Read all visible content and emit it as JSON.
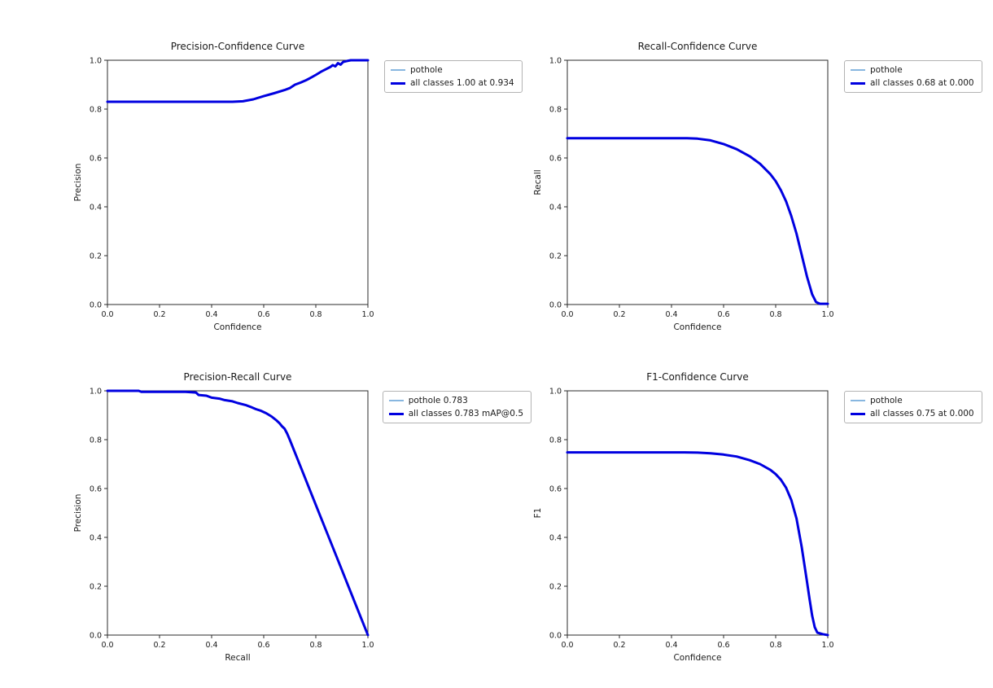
{
  "page": {
    "background_color": "#ffffff",
    "line_color_all_classes": "#0000e0",
    "line_color_pothole": "#88b7e0"
  },
  "chart_data": [
    {
      "type": "line",
      "title": "Precision-Confidence Curve",
      "xlabel": "Confidence",
      "ylabel": "Precision",
      "xlim": [
        0.0,
        1.0
      ],
      "ylim": [
        0.0,
        1.0
      ],
      "xticks": [
        0.0,
        0.2,
        0.4,
        0.6,
        0.8,
        1.0
      ],
      "yticks": [
        0.0,
        0.2,
        0.4,
        0.6,
        0.8,
        1.0
      ],
      "grid": false,
      "legend_position": "outside-top-right",
      "points": [
        [
          0,
          0.83
        ],
        [
          0.48,
          0.83
        ],
        [
          0.52,
          0.832
        ],
        [
          0.56,
          0.84
        ],
        [
          0.6,
          0.853
        ],
        [
          0.64,
          0.865
        ],
        [
          0.68,
          0.878
        ],
        [
          0.7,
          0.886
        ],
        [
          0.72,
          0.9
        ],
        [
          0.74,
          0.908
        ],
        [
          0.76,
          0.917
        ],
        [
          0.78,
          0.928
        ],
        [
          0.8,
          0.94
        ],
        [
          0.82,
          0.953
        ],
        [
          0.84,
          0.964
        ],
        [
          0.855,
          0.972
        ],
        [
          0.865,
          0.98
        ],
        [
          0.875,
          0.975
        ],
        [
          0.885,
          0.988
        ],
        [
          0.895,
          0.982
        ],
        [
          0.905,
          0.993
        ],
        [
          0.92,
          0.997
        ],
        [
          0.934,
          1.0
        ],
        [
          1.0,
          1.0
        ]
      ],
      "series": [
        {
          "name": "pothole",
          "color": "#88b7e0",
          "width": 1.2
        },
        {
          "name": "all classes 1.00 at 0.934",
          "color": "#0000e0",
          "width": 3
        }
      ]
    },
    {
      "type": "line",
      "title": "Recall-Confidence Curve",
      "xlabel": "Confidence",
      "ylabel": "Recall",
      "xlim": [
        0.0,
        1.0
      ],
      "ylim": [
        0.0,
        1.0
      ],
      "xticks": [
        0.0,
        0.2,
        0.4,
        0.6,
        0.8,
        1.0
      ],
      "yticks": [
        0.0,
        0.2,
        0.4,
        0.6,
        0.8,
        1.0
      ],
      "grid": false,
      "legend_position": "outside-top-right",
      "points": [
        [
          0,
          0.681
        ],
        [
          0.46,
          0.681
        ],
        [
          0.5,
          0.679
        ],
        [
          0.55,
          0.672
        ],
        [
          0.6,
          0.657
        ],
        [
          0.65,
          0.636
        ],
        [
          0.7,
          0.607
        ],
        [
          0.74,
          0.576
        ],
        [
          0.78,
          0.533
        ],
        [
          0.8,
          0.505
        ],
        [
          0.82,
          0.468
        ],
        [
          0.84,
          0.422
        ],
        [
          0.86,
          0.362
        ],
        [
          0.88,
          0.29
        ],
        [
          0.9,
          0.203
        ],
        [
          0.92,
          0.115
        ],
        [
          0.94,
          0.042
        ],
        [
          0.955,
          0.01
        ],
        [
          0.97,
          0.003
        ],
        [
          1.0,
          0.003
        ]
      ],
      "series": [
        {
          "name": "pothole",
          "color": "#88b7e0",
          "width": 1.2
        },
        {
          "name": "all classes 0.68 at 0.000",
          "color": "#0000e0",
          "width": 3
        }
      ]
    },
    {
      "type": "line",
      "title": "Precision-Recall Curve",
      "xlabel": "Recall",
      "ylabel": "Precision",
      "xlim": [
        0.0,
        1.0
      ],
      "ylim": [
        0.0,
        1.0
      ],
      "xticks": [
        0.0,
        0.2,
        0.4,
        0.6,
        0.8,
        1.0
      ],
      "yticks": [
        0.0,
        0.2,
        0.4,
        0.6,
        0.8,
        1.0
      ],
      "grid": false,
      "legend_position": "outside-top-right",
      "points": [
        [
          0,
          1.0
        ],
        [
          0.12,
          1.0
        ],
        [
          0.13,
          0.996
        ],
        [
          0.3,
          0.996
        ],
        [
          0.34,
          0.993
        ],
        [
          0.35,
          0.983
        ],
        [
          0.38,
          0.98
        ],
        [
          0.4,
          0.972
        ],
        [
          0.43,
          0.968
        ],
        [
          0.45,
          0.962
        ],
        [
          0.48,
          0.957
        ],
        [
          0.5,
          0.95
        ],
        [
          0.53,
          0.942
        ],
        [
          0.55,
          0.934
        ],
        [
          0.57,
          0.925
        ],
        [
          0.59,
          0.918
        ],
        [
          0.61,
          0.908
        ],
        [
          0.63,
          0.895
        ],
        [
          0.65,
          0.878
        ],
        [
          0.66,
          0.868
        ],
        [
          0.67,
          0.855
        ],
        [
          0.68,
          0.845
        ],
        [
          0.69,
          0.825
        ],
        [
          0.7,
          0.8
        ],
        [
          0.75,
          0.667
        ],
        [
          0.8,
          0.533
        ],
        [
          0.85,
          0.4
        ],
        [
          0.9,
          0.267
        ],
        [
          0.95,
          0.133
        ],
        [
          1.0,
          0.0
        ]
      ],
      "series": [
        {
          "name": "pothole 0.783",
          "color": "#88b7e0",
          "width": 1.2
        },
        {
          "name": "all classes 0.783 mAP@0.5",
          "color": "#0000e0",
          "width": 3
        }
      ]
    },
    {
      "type": "line",
      "title": "F1-Confidence Curve",
      "xlabel": "Confidence",
      "ylabel": "F1",
      "xlim": [
        0.0,
        1.0
      ],
      "ylim": [
        0.0,
        1.0
      ],
      "xticks": [
        0.0,
        0.2,
        0.4,
        0.6,
        0.8,
        1.0
      ],
      "yticks": [
        0.0,
        0.2,
        0.4,
        0.6,
        0.8,
        1.0
      ],
      "grid": false,
      "legend_position": "outside-top-right",
      "points": [
        [
          0,
          0.748
        ],
        [
          0.45,
          0.748
        ],
        [
          0.5,
          0.747
        ],
        [
          0.55,
          0.744
        ],
        [
          0.6,
          0.739
        ],
        [
          0.65,
          0.731
        ],
        [
          0.7,
          0.716
        ],
        [
          0.74,
          0.7
        ],
        [
          0.78,
          0.676
        ],
        [
          0.8,
          0.659
        ],
        [
          0.82,
          0.636
        ],
        [
          0.84,
          0.603
        ],
        [
          0.86,
          0.553
        ],
        [
          0.88,
          0.477
        ],
        [
          0.9,
          0.36
        ],
        [
          0.92,
          0.22
        ],
        [
          0.93,
          0.148
        ],
        [
          0.94,
          0.08
        ],
        [
          0.95,
          0.032
        ],
        [
          0.96,
          0.01
        ],
        [
          0.98,
          0.004
        ],
        [
          1.0,
          0.0
        ]
      ],
      "series": [
        {
          "name": "pothole",
          "color": "#88b7e0",
          "width": 1.2
        },
        {
          "name": "all classes 0.75 at 0.000",
          "color": "#0000e0",
          "width": 3
        }
      ]
    }
  ]
}
